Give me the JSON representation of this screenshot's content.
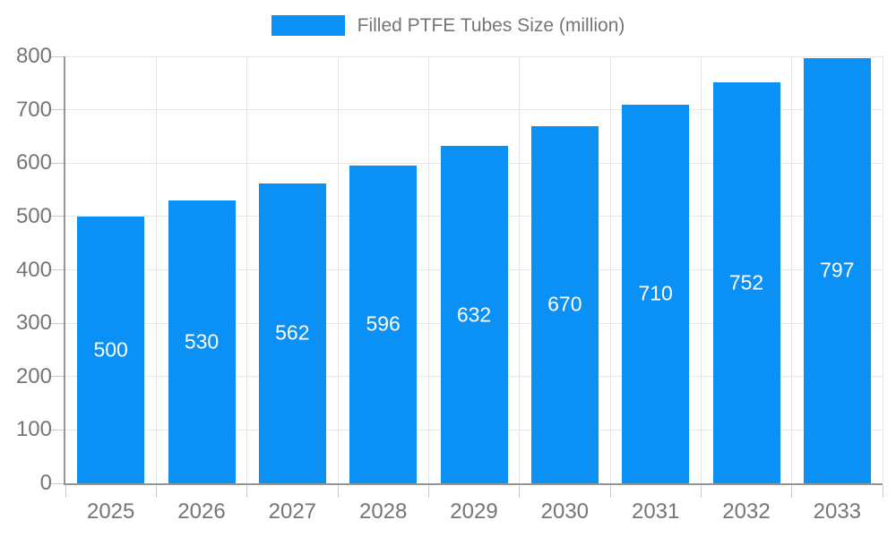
{
  "legend": {
    "label": "Filled PTFE Tubes Size (million)"
  },
  "colors": {
    "bar": "#0B90F5",
    "bar_label_text": "#FFFFFF",
    "axis_text": "#757575",
    "axis_line": "#949494",
    "gridline": "#E6E6E6",
    "tick": "#C9C9C9",
    "background": "#FFFFFF"
  },
  "chart_data": {
    "type": "bar",
    "title": "",
    "series_name": "Filled PTFE Tubes Size (million)",
    "categories": [
      "2025",
      "2026",
      "2027",
      "2028",
      "2029",
      "2030",
      "2031",
      "2032",
      "2033"
    ],
    "values": [
      500,
      530,
      562,
      596,
      632,
      670,
      710,
      752,
      797
    ],
    "xlabel": "",
    "ylabel": "",
    "ylim": [
      0,
      800
    ],
    "yticks": [
      0,
      100,
      200,
      300,
      400,
      500,
      600,
      700,
      800
    ],
    "grid": true,
    "legend_position": "top",
    "bar_value_labels": true
  }
}
